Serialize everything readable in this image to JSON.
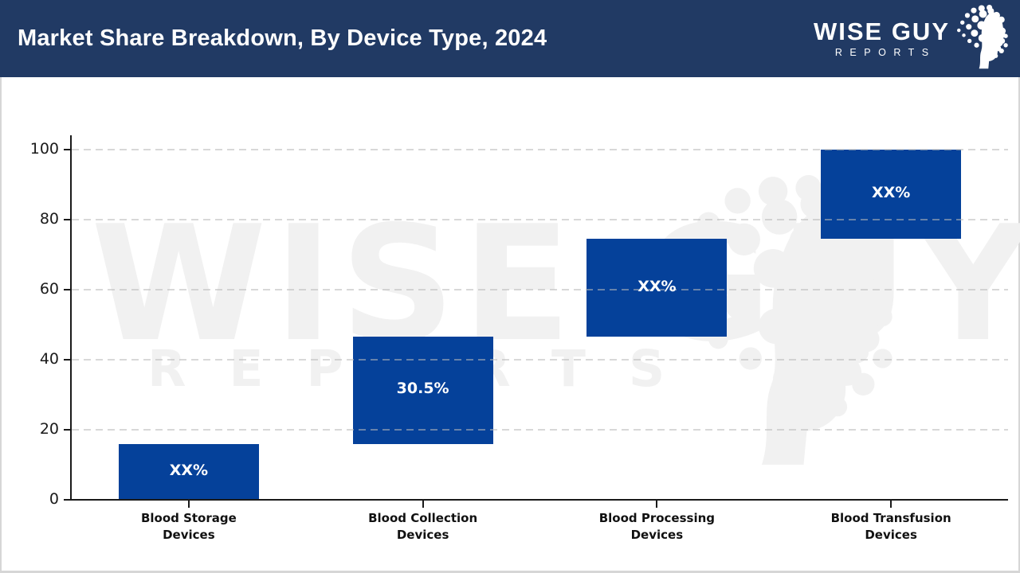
{
  "header": {
    "title": "Market Share Breakdown, By Device Type, 2024",
    "bg_color": "#213a64",
    "logo": {
      "line1": "WISE GUY",
      "line2": "REPORTS"
    }
  },
  "icons": {
    "logo_face": "face-profile-dots-icon",
    "watermark_face": "face-profile-dots-icon"
  },
  "watermark": {
    "line1": "WISE GUY",
    "line2": "REPORTS"
  },
  "chart_data": {
    "type": "bar",
    "subtype": "waterfall",
    "title": "Market Share Breakdown, By Device Type, 2024",
    "xlabel": "",
    "ylabel": "",
    "categories": [
      "Blood Storage\nDevices",
      "Blood Collection\nDevices",
      "Blood Processing\nDevices",
      "Blood Transfusion\nDevices"
    ],
    "segments": [
      {
        "start": 0,
        "end": 16,
        "label": "XX%"
      },
      {
        "start": 16,
        "end": 46.5,
        "label": "30.5%"
      },
      {
        "start": 46.5,
        "end": 74.5,
        "label": "XX%"
      },
      {
        "start": 74.5,
        "end": 100,
        "label": "XX%"
      }
    ],
    "yticks": [
      0,
      20,
      40,
      60,
      80,
      100
    ],
    "ylim": [
      0,
      104
    ],
    "bar_color": "#05419a",
    "grid": true,
    "grid_style": "dashed",
    "legend": null
  }
}
